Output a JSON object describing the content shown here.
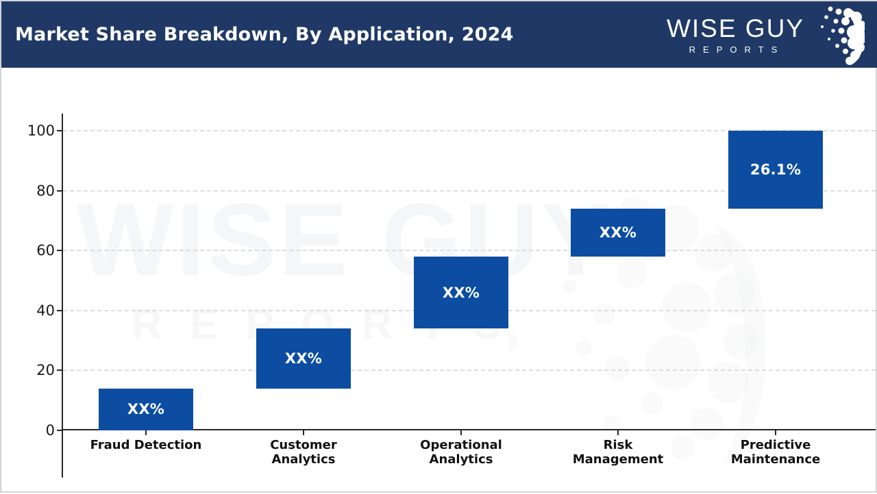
{
  "header": {
    "title": "Market Share Breakdown, By Application, 2024",
    "bg_color": "#1f3865",
    "logo": {
      "line1": "WISE GUY",
      "line2": "REPORTS"
    }
  },
  "watermark": {
    "line1": "WISE GUY",
    "line2": "REPORTS"
  },
  "chart_data": {
    "type": "bar",
    "subtype": "stacked-waterfall",
    "title": "Market Share Breakdown, By Application, 2024",
    "categories": [
      "Fraud Detection",
      "Customer Analytics",
      "Operational Analytics",
      "Risk Management",
      "Predictive Maintenance"
    ],
    "segments": [
      {
        "category": "Fraud Detection",
        "start": 0,
        "end": 14,
        "value_label": "XX%"
      },
      {
        "category": "Customer Analytics",
        "start": 14,
        "end": 34,
        "value_label": "XX%"
      },
      {
        "category": "Operational Analytics",
        "start": 34,
        "end": 58,
        "value_label": "XX%"
      },
      {
        "category": "Risk Management",
        "start": 58,
        "end": 74,
        "value_label": "XX%"
      },
      {
        "category": "Predictive Maintenance",
        "start": 74,
        "end": 100.1,
        "value_label": "26.1%"
      }
    ],
    "yticks": [
      0,
      20,
      40,
      60,
      80,
      100
    ],
    "ylim": [
      0,
      105
    ],
    "xlabel": "",
    "ylabel": "",
    "bar_color": "#0c4da2",
    "label_color": "#ffffff",
    "grid": "horizontal-dashed",
    "legend": "none"
  }
}
